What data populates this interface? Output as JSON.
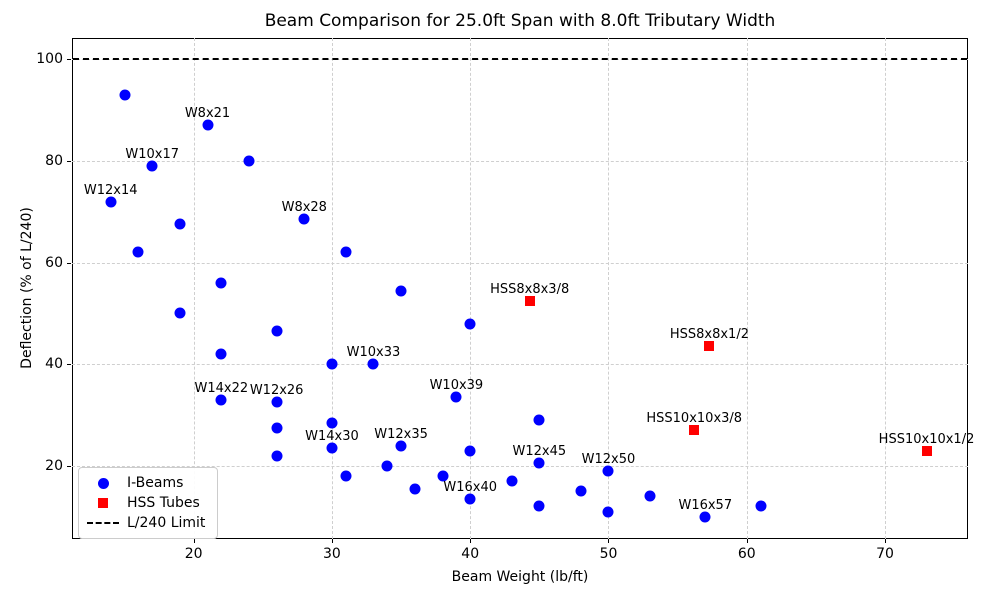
{
  "chart_data": {
    "type": "scatter",
    "title": "Beam Comparison for 25.0ft Span with 8.0ft Tributary Width",
    "xlabel": "Beam Weight (lb/ft)",
    "ylabel": "Deflection (% of L/240)",
    "xlim": [
      11.2,
      76.0
    ],
    "ylim": [
      5.6,
      104.2
    ],
    "xticks": [
      20,
      30,
      40,
      50,
      60,
      70
    ],
    "yticks": [
      20,
      40,
      60,
      80,
      100
    ],
    "grid": true,
    "legend_position": "lower-left",
    "limit_line": {
      "y": 100,
      "color": "#000000",
      "style": "dashed",
      "label": "L/240 Limit"
    },
    "series": [
      {
        "name": "I-Beams",
        "marker": "circle",
        "color": "#0000ff",
        "points": [
          {
            "x": 14,
            "y": 72,
            "label": "W12x14"
          },
          {
            "x": 15,
            "y": 93
          },
          {
            "x": 16,
            "y": 62
          },
          {
            "x": 17,
            "y": 79,
            "label": "W10x17"
          },
          {
            "x": 19,
            "y": 67.5
          },
          {
            "x": 19,
            "y": 50
          },
          {
            "x": 21,
            "y": 87,
            "label": "W8x21"
          },
          {
            "x": 22,
            "y": 56
          },
          {
            "x": 22,
            "y": 42
          },
          {
            "x": 22,
            "y": 33,
            "label": "W14x22"
          },
          {
            "x": 24,
            "y": 80
          },
          {
            "x": 26,
            "y": 46.5
          },
          {
            "x": 26,
            "y": 32.5,
            "label": "W12x26"
          },
          {
            "x": 26,
            "y": 27.5
          },
          {
            "x": 26,
            "y": 22
          },
          {
            "x": 28,
            "y": 68.5,
            "label": "W8x28"
          },
          {
            "x": 30,
            "y": 40
          },
          {
            "x": 30,
            "y": 28.5
          },
          {
            "x": 30,
            "y": 23.5,
            "label": "W14x30"
          },
          {
            "x": 31,
            "y": 62
          },
          {
            "x": 31,
            "y": 18
          },
          {
            "x": 33,
            "y": 40,
            "label": "W10x33"
          },
          {
            "x": 34,
            "y": 20
          },
          {
            "x": 35,
            "y": 54.5
          },
          {
            "x": 35,
            "y": 24,
            "label": "W12x35"
          },
          {
            "x": 36,
            "y": 15.5
          },
          {
            "x": 38,
            "y": 18
          },
          {
            "x": 39,
            "y": 33.5,
            "label": "W10x39"
          },
          {
            "x": 40,
            "y": 48
          },
          {
            "x": 40,
            "y": 23
          },
          {
            "x": 40,
            "y": 13.5,
            "label": "W16x40"
          },
          {
            "x": 43,
            "y": 17
          },
          {
            "x": 45,
            "y": 29
          },
          {
            "x": 45,
            "y": 20.5,
            "label": "W12x45"
          },
          {
            "x": 45,
            "y": 12
          },
          {
            "x": 48,
            "y": 15
          },
          {
            "x": 50,
            "y": 19,
            "label": "W12x50"
          },
          {
            "x": 50,
            "y": 11
          },
          {
            "x": 53,
            "y": 14
          },
          {
            "x": 57,
            "y": 10,
            "label": "W16x57"
          },
          {
            "x": 61,
            "y": 12
          }
        ]
      },
      {
        "name": "HSS Tubes",
        "marker": "square",
        "color": "#ff0000",
        "points": [
          {
            "x": 44.3,
            "y": 52.4,
            "label": "HSS8x8x3/8"
          },
          {
            "x": 57.3,
            "y": 43.5,
            "label": "HSS8x8x1/2"
          },
          {
            "x": 56.2,
            "y": 27,
            "label": "HSS10x10x3/8"
          },
          {
            "x": 73,
            "y": 23,
            "label": "HSS10x10x1/2"
          }
        ]
      }
    ]
  },
  "legend": {
    "items": [
      {
        "label": "I-Beams",
        "marker": "circle-icon",
        "color": "#0000ff"
      },
      {
        "label": "HSS Tubes",
        "marker": "square-icon",
        "color": "#ff0000"
      },
      {
        "label": "L/240 Limit",
        "marker": "dashed-line-icon",
        "color": "#000000"
      }
    ]
  }
}
